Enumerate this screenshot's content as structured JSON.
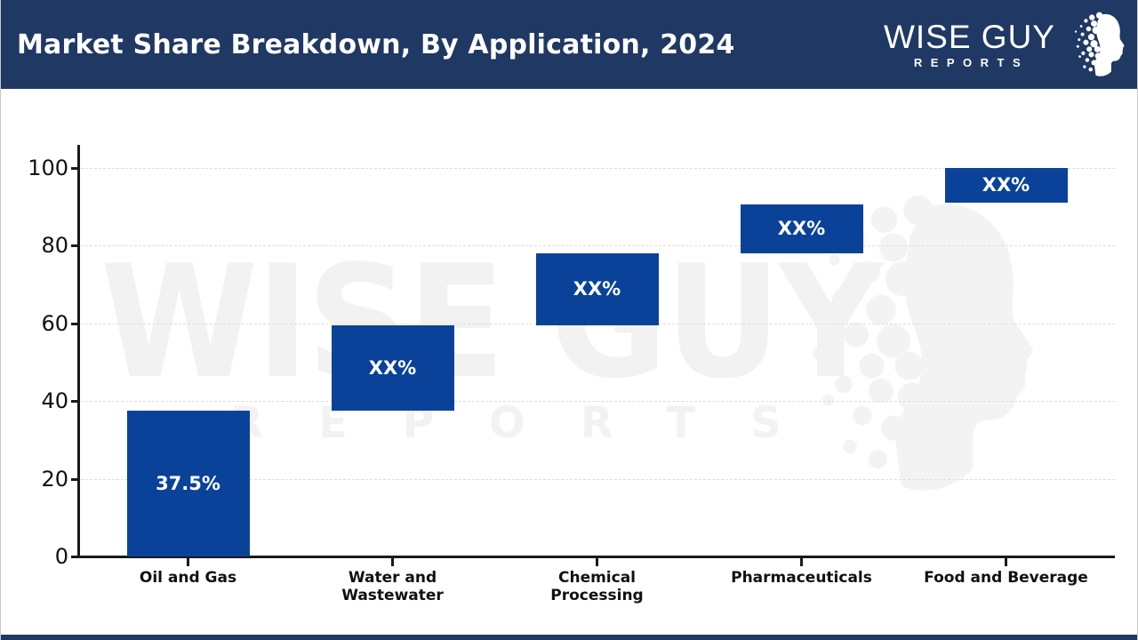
{
  "header": {
    "title": "Market Share Breakdown, By Application, 2024",
    "logo": {
      "line1": "WISE GUY",
      "line2": "REPORTS"
    }
  },
  "watermark": {
    "line1": "WISE GUY",
    "line2": "REPORTS"
  },
  "footer": {},
  "colors": {
    "header_bg": "#1F3864",
    "footer_bg": "#1F3864",
    "bar": "#0A429A",
    "bar_label_text": "#ffffff",
    "grid": "#dedede",
    "axis": "#1a1a1a",
    "tick_text": "#111111",
    "watermark": "#f2f2f2",
    "page_border": "#c9c9c9"
  },
  "chart_data": {
    "type": "bar",
    "subtype": "waterfall (floating segment bars)",
    "title": "Market Share Breakdown, By Application, 2024",
    "xlabel": "",
    "ylabel": "",
    "categories": [
      "Oil and Gas",
      "Water and Wastewater",
      "Chemical Processing",
      "Pharmaceuticals",
      "Food and Beverage"
    ],
    "category_label_lines": [
      [
        "Oil and Gas"
      ],
      [
        "Water and",
        "Wastewater"
      ],
      [
        "Chemical",
        "Processing"
      ],
      [
        "Pharmaceuticals"
      ],
      [
        "Food and Beverage"
      ]
    ],
    "series": [
      {
        "name": "Market share (%)",
        "segments": [
          {
            "category": "Oil and Gas",
            "start": 0,
            "end": 37.5,
            "label": "37.5%"
          },
          {
            "category": "Water and Wastewater",
            "start": 37.5,
            "end": 59.5,
            "label": "XX%"
          },
          {
            "category": "Chemical Processing",
            "start": 59.5,
            "end": 78,
            "label": "XX%"
          },
          {
            "category": "Pharmaceuticals",
            "start": 78,
            "end": 90.5,
            "label": "XX%"
          },
          {
            "category": "Food and Beverage",
            "start": 91,
            "end": 100,
            "label": "XX%"
          }
        ]
      }
    ],
    "ylim": [
      0,
      105
    ],
    "yticks": [
      0,
      20,
      40,
      60,
      80,
      100
    ],
    "ytick_labels": [
      "0",
      "20",
      "40",
      "60",
      "80",
      "100"
    ],
    "grid": "horizontal dashed",
    "legend": "none"
  }
}
